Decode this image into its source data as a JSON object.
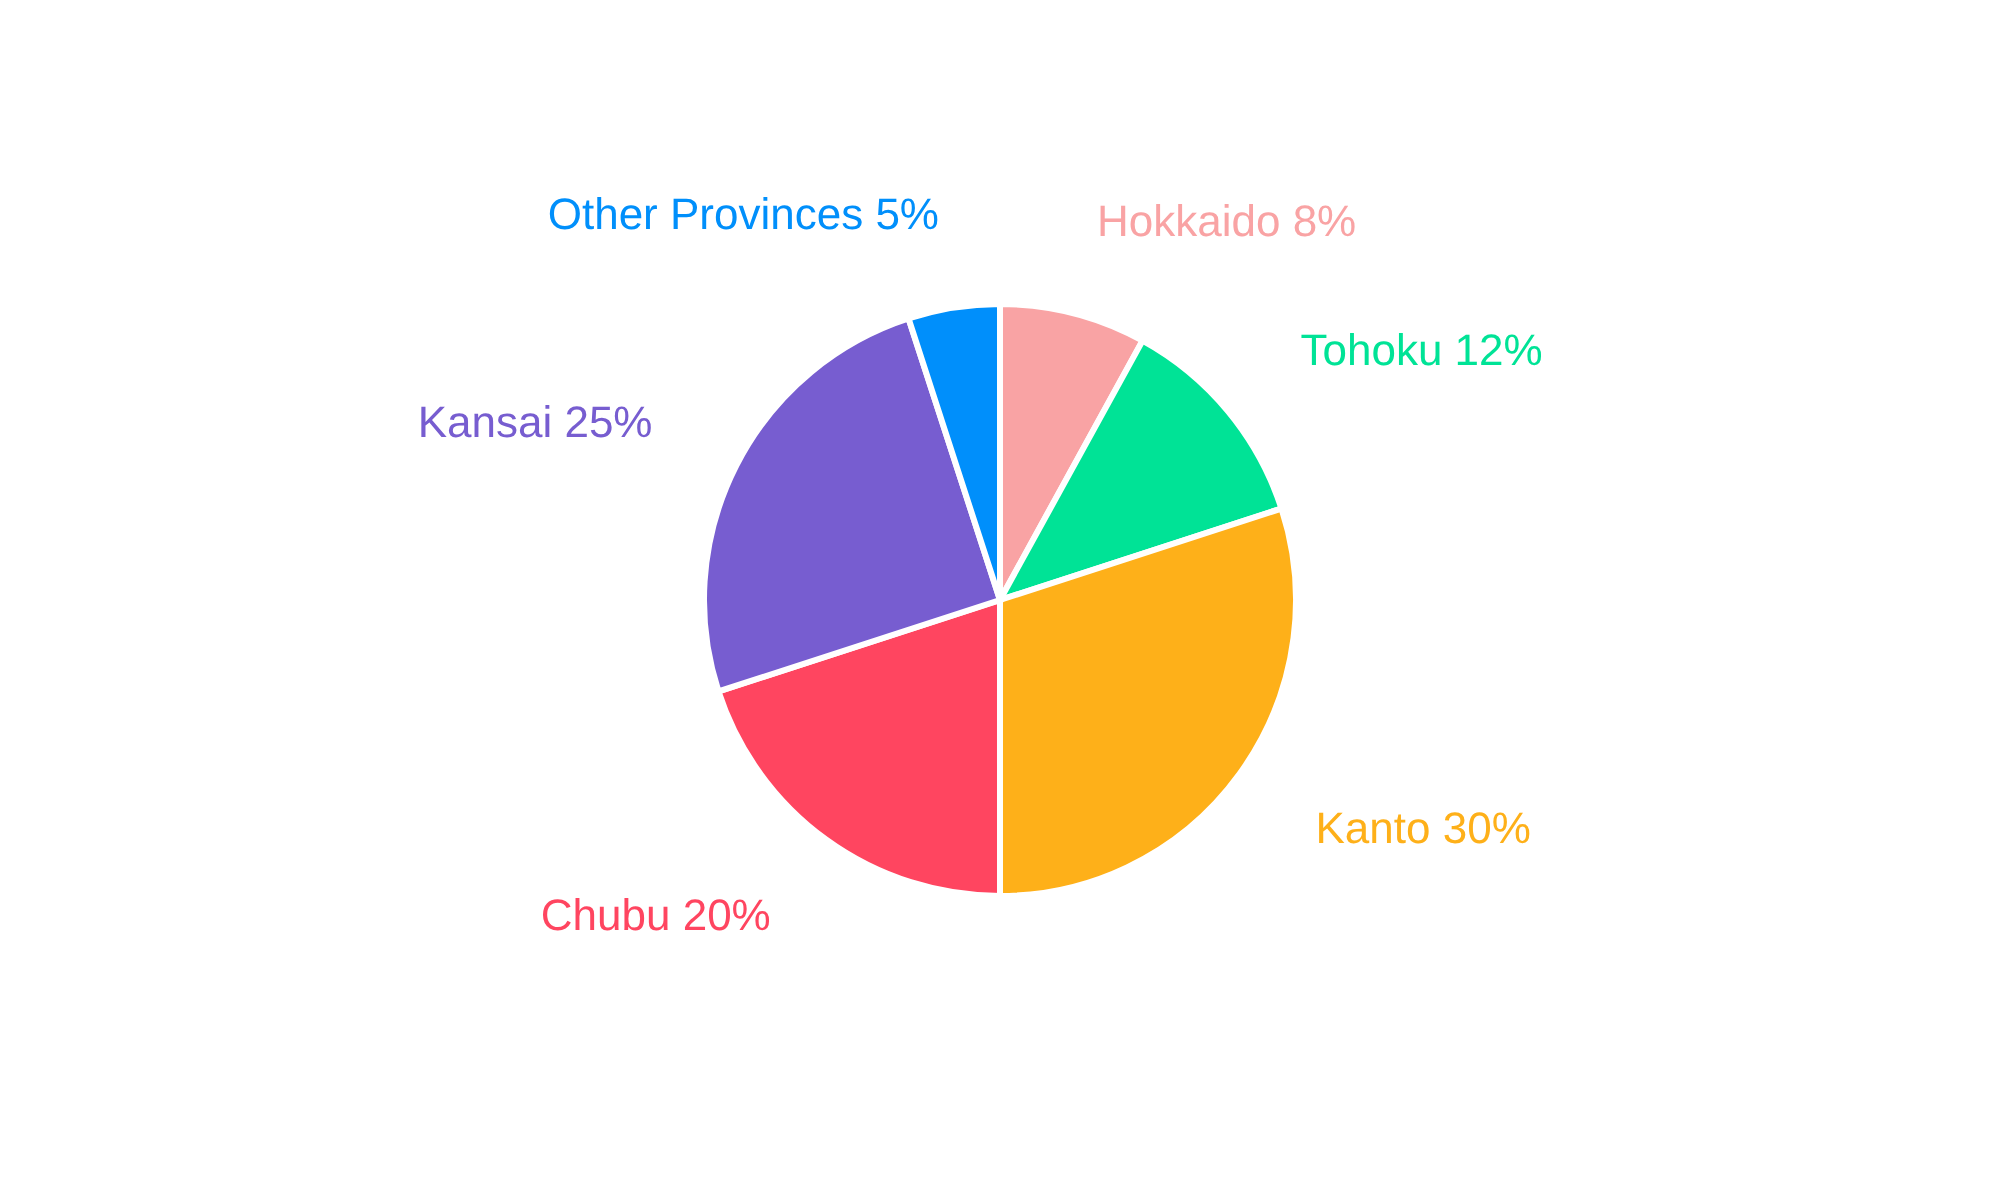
{
  "chart_data": {
    "type": "pie",
    "categories": [
      "Hokkaido",
      "Tohoku",
      "Kanto",
      "Chubu",
      "Kansai",
      "Other Provinces"
    ],
    "values": [
      8,
      12,
      30,
      20,
      25,
      5
    ],
    "value_labels": [
      "8%",
      "12%",
      "30%",
      "20%",
      "25%",
      "5%"
    ],
    "colors": [
      "#f9a3a4",
      "#00e396",
      "#feb019",
      "#ff4560",
      "#775dd0",
      "#008ffb"
    ]
  }
}
